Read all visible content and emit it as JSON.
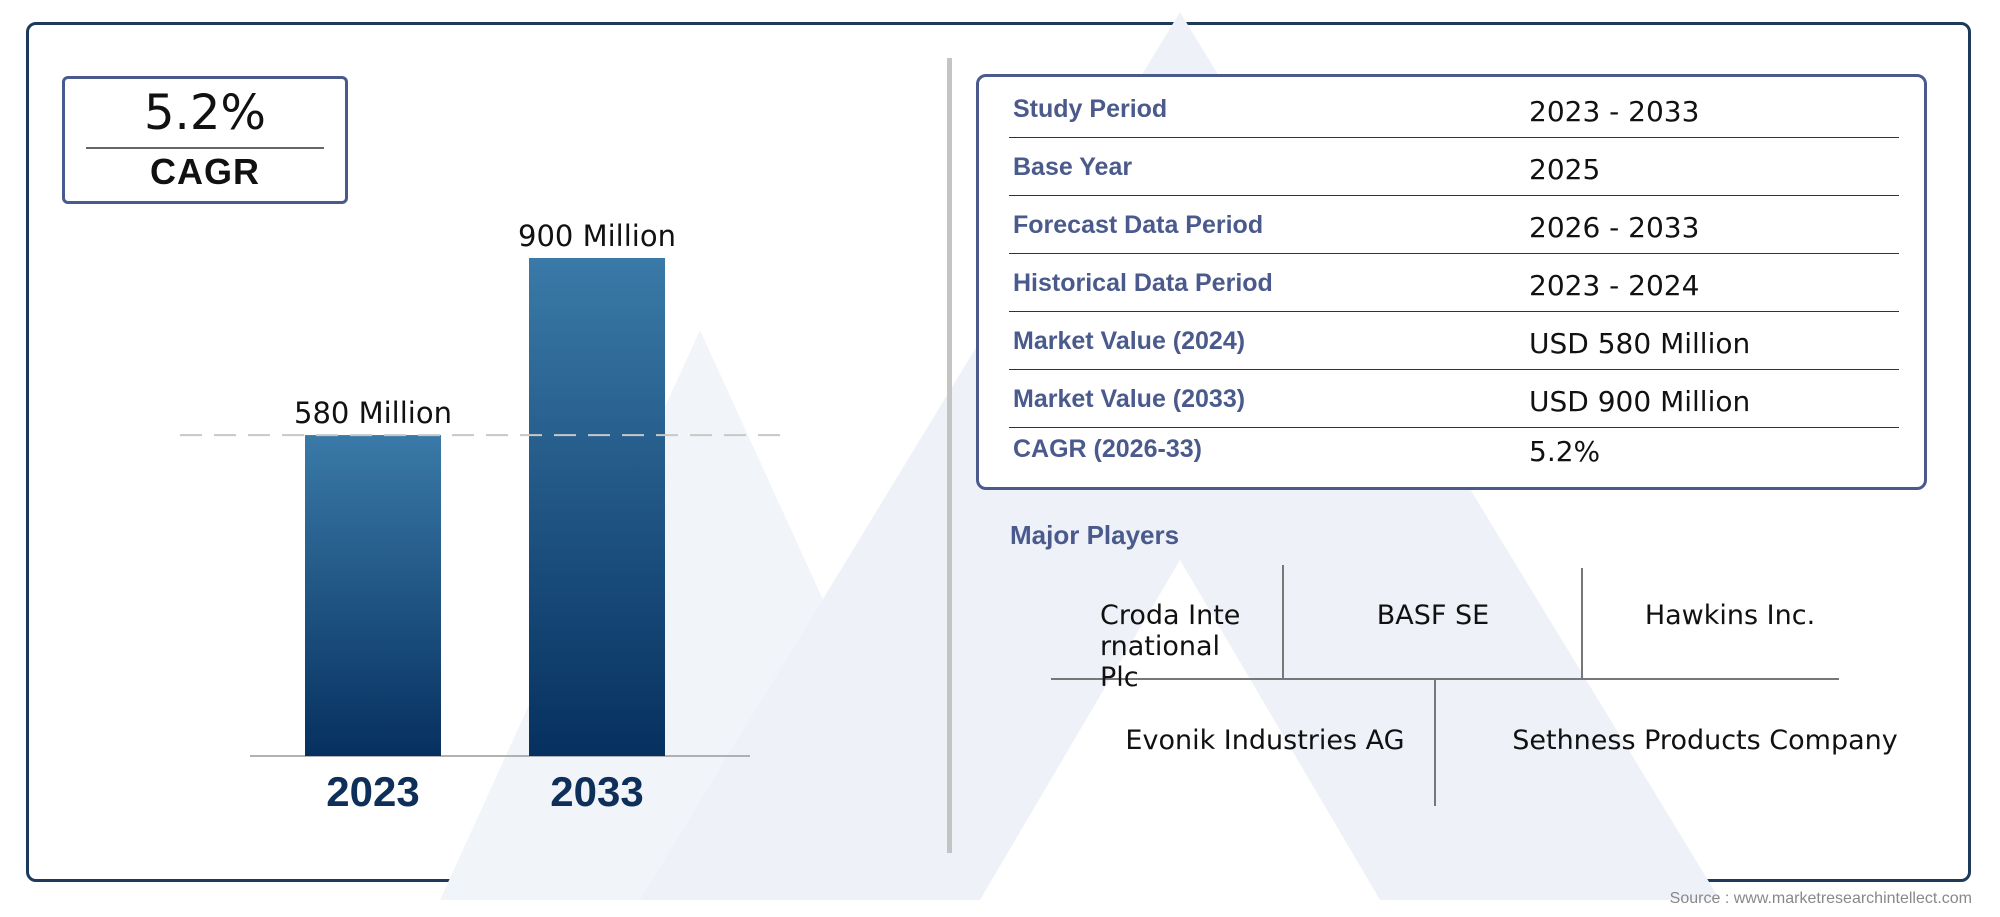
{
  "cagr_box": {
    "value": "5.2%",
    "label": "CAGR"
  },
  "chart_data": {
    "type": "bar",
    "categories": [
      "2023",
      "2033"
    ],
    "values": [
      580,
      900
    ],
    "data_labels": [
      "580 Million",
      "900 Million"
    ],
    "title": "",
    "xlabel": "",
    "ylabel": "",
    "ylim": [
      0,
      1000
    ],
    "reference_line": {
      "value": 580,
      "style": "dashed"
    },
    "grid": false,
    "colors": {
      "bar_top": "#3a7aa8",
      "bar_bottom": "#06305f",
      "tick_label": "#0d2f5a"
    }
  },
  "info_table": {
    "rows": [
      {
        "key": "Study Period",
        "value": "2023 - 2033"
      },
      {
        "key": "Base Year",
        "value": "2025"
      },
      {
        "key": "Forecast Data Period",
        "value": "2026 - 2033"
      },
      {
        "key": "Historical Data Period",
        "value": "2023 - 2024"
      },
      {
        "key": "Market Value (2024)",
        "value": "USD 580 Million"
      },
      {
        "key": "Market Value (2033)",
        "value": "USD 900 Million"
      },
      {
        "key": "CAGR (2026-33)",
        "value": "5.2%"
      }
    ]
  },
  "players": {
    "title": "Major Players",
    "row1": [
      "Croda International Plc",
      "BASF SE",
      "Hawkins Inc."
    ],
    "row2": [
      "Evonik Industries AG",
      "Sethness Products Company"
    ]
  },
  "source": "Source : www.marketresearchintellect.com",
  "colors": {
    "accent": "#4a5a8c",
    "frame": "#1d3a5b",
    "watermark": "#eef2f8"
  }
}
